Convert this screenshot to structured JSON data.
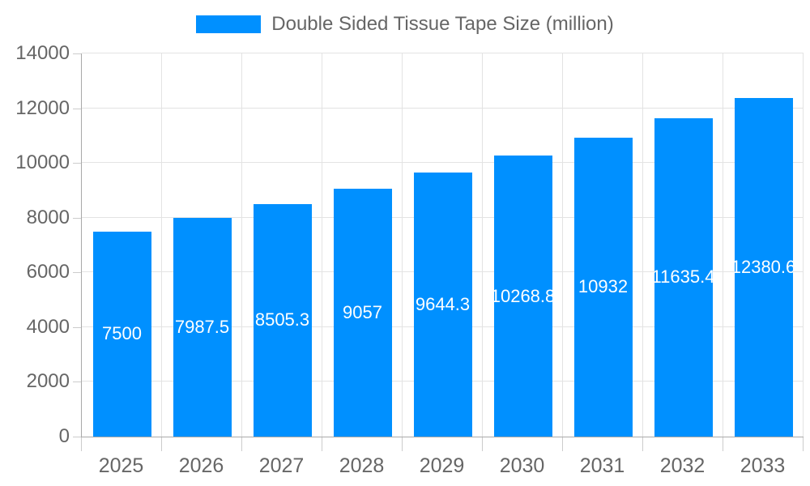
{
  "chart_data": {
    "type": "bar",
    "legend": "Double Sided Tissue Tape Size (million)",
    "legend_position": "top",
    "categories": [
      "2025",
      "2026",
      "2027",
      "2028",
      "2029",
      "2030",
      "2031",
      "2032",
      "2033"
    ],
    "values": [
      7500,
      7987.5,
      8505.3,
      9057,
      9644.3,
      10268.8,
      10932,
      11635.4,
      12380.6
    ],
    "bar_labels": [
      "7500",
      "7987.5",
      "8505.3",
      "9057",
      "9644.3",
      "10268.8",
      "10932",
      "11635.4",
      "12380.6"
    ],
    "xlabel": "",
    "ylabel": "",
    "ylim": [
      0,
      14000
    ],
    "yticks": [
      0,
      2000,
      4000,
      6000,
      8000,
      10000,
      12000,
      14000
    ],
    "grid": true,
    "colors": {
      "bar": "#0090ff",
      "bar_label_text": "#ffffff",
      "tick_text": "#666666",
      "gridline": "#e3e3e3",
      "tick_mark": "#cccccc",
      "axis_line": "#a9a9a9",
      "background": "#ffffff"
    }
  }
}
